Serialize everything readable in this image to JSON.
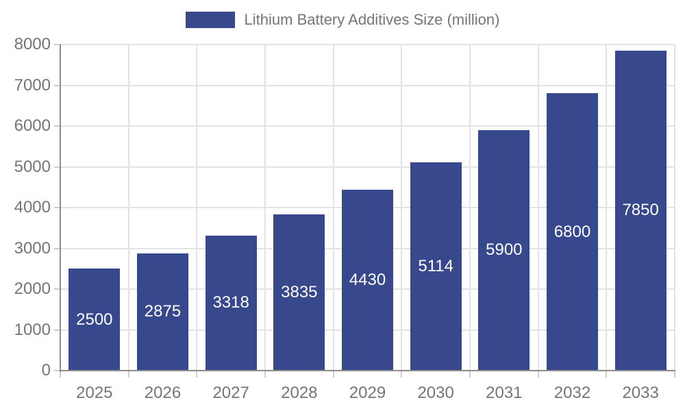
{
  "legend": {
    "label": "Lithium Battery Additives Size (million)"
  },
  "colors": {
    "bar": "#37498C",
    "bar_label": "#FFFFFF",
    "text": "#757575",
    "axis": "#8B8B8B",
    "grid": "#E3E3E3",
    "tick": "#CCCCCC",
    "background": "#FFFFFF"
  },
  "chart_data": {
    "type": "bar",
    "title": "Lithium Battery Additives Size (million)",
    "series_name": "Lithium Battery Additives Size (million)",
    "categories": [
      "2025",
      "2026",
      "2027",
      "2028",
      "2029",
      "2030",
      "2031",
      "2032",
      "2033"
    ],
    "values": [
      2500,
      2875,
      3318,
      3835,
      4430,
      5114,
      5900,
      6800,
      7850
    ],
    "xlabel": "",
    "ylabel": "",
    "ylim": [
      0,
      8000
    ],
    "ytick_step": 1000,
    "yticks": [
      0,
      1000,
      2000,
      3000,
      4000,
      5000,
      6000,
      7000,
      8000
    ],
    "grid": true,
    "legend_position": "top",
    "bar_label_position": "inside-center",
    "bar_width_fraction": 0.75
  }
}
